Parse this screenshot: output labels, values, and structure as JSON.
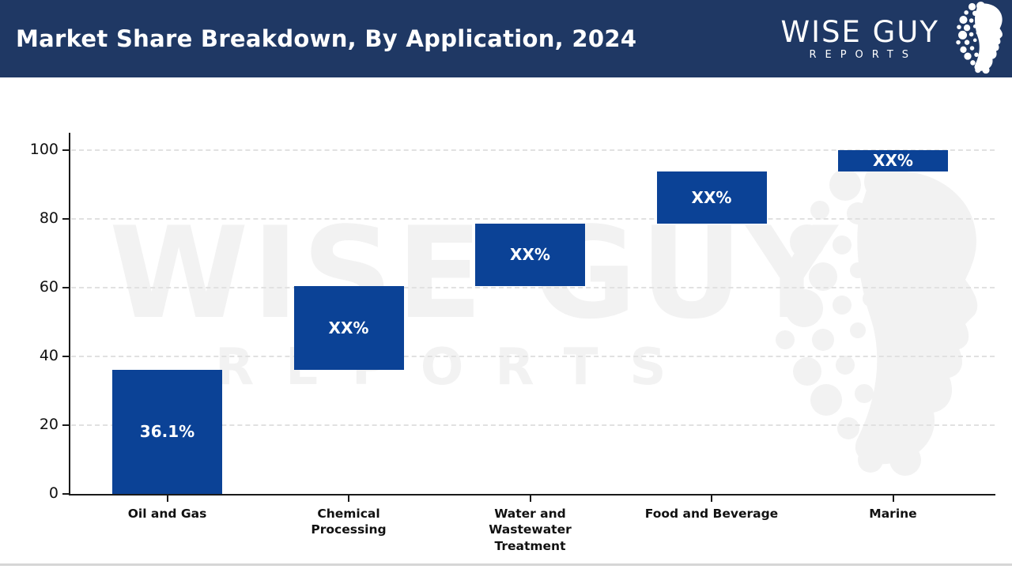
{
  "header": {
    "title": "Market Share Breakdown, By Application, 2024",
    "logo": {
      "line1": "WISE GUY",
      "line2": "REPORTS"
    }
  },
  "watermark": {
    "line1": "WISE GUY",
    "line2": "REPORTS"
  },
  "icons": {
    "logo_face": "dotted-face-profile-icon",
    "watermark_face": "dotted-face-profile-icon"
  },
  "colors": {
    "header_bg": "#1f3864",
    "bar": "#0b4296",
    "bar_label": "#ffffff",
    "axis": "#1a1a1a",
    "gridline": "#e1e1e1",
    "watermark": "#f2f2f2"
  },
  "chart_data": {
    "type": "bar",
    "variant": "floating-waterfall",
    "title": "Market Share Breakdown, By Application, 2024",
    "categories": [
      "Oil and Gas",
      "Chemical Processing",
      "Water and Wastewater Treatment",
      "Food and Beverage",
      "Marine"
    ],
    "category_display": [
      "Oil and Gas",
      "Chemical\nProcessing",
      "Water and\nWastewater\nTreatment",
      "Food and Beverage",
      "Marine"
    ],
    "segments": [
      {
        "category": "Oil and Gas",
        "from": 0,
        "to": 36.1,
        "height": 36.1,
        "label": "36.1%"
      },
      {
        "category": "Chemical Processing",
        "from": 36.1,
        "to": 60.5,
        "height": 24.4,
        "label": "XX%"
      },
      {
        "category": "Water and Wastewater Treatment",
        "from": 60.5,
        "to": 78.6,
        "height": 18.1,
        "label": "XX%"
      },
      {
        "category": "Food and Beverage",
        "from": 78.6,
        "to": 93.8,
        "height": 15.2,
        "label": "XX%"
      },
      {
        "category": "Marine",
        "from": 93.8,
        "to": 100,
        "height": 6.2,
        "label": "XX%"
      }
    ],
    "xlabel": "",
    "ylabel": "",
    "ylim": [
      0,
      100
    ],
    "yticks": [
      0,
      20,
      40,
      60,
      80,
      100
    ],
    "grid": true,
    "legend": false,
    "bar_color": "#0b4296",
    "bar_label_color": "#ffffff"
  }
}
